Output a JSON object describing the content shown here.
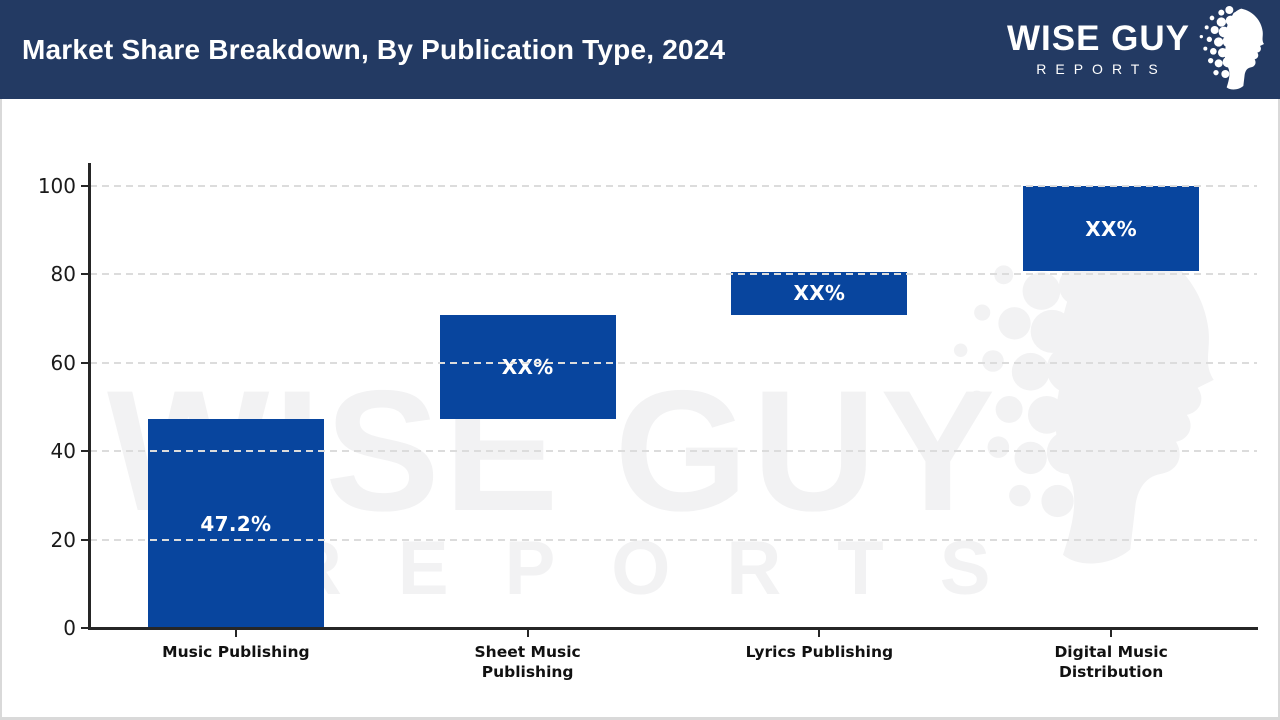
{
  "header": {
    "bg_color": "#233A63",
    "logo": {
      "line1": "WISE GUY",
      "line2": "REPORTS"
    }
  },
  "chart_data": {
    "type": "bar",
    "variant": "waterfall",
    "title": "Market Share Breakdown, By Publication Type, 2024",
    "categories": [
      "Music Publishing",
      "Sheet Music Publishing",
      "Lyrics Publishing",
      "Digital Music Distribution"
    ],
    "bars": [
      {
        "category": "Music Publishing",
        "label": "47.2%",
        "start": 0,
        "end": 47.2
      },
      {
        "category": "Sheet Music Publishing",
        "label": "XX%",
        "start": 47.2,
        "end": 70.9
      },
      {
        "category": "Lyrics Publishing",
        "label": "XX%",
        "start": 70.9,
        "end": 80.5
      },
      {
        "category": "Digital Music Distribution",
        "label": "XX%",
        "start": 80.7,
        "end": 100
      }
    ],
    "xlabel": "",
    "ylabel": "",
    "ylim": [
      0,
      100
    ],
    "yticks": [
      0,
      20,
      40,
      60,
      80,
      100
    ],
    "grid": {
      "horizontal": true,
      "style": "dashed",
      "color": "#dcdcdc",
      "drawn_above_bars": true
    },
    "legend": "none",
    "bar_color": "#08459E",
    "bar_label_color": "#ffffff",
    "axis_color": "#262626",
    "tick_label_color": "#1a1a1a",
    "watermark": {
      "line1": "WISE GUY",
      "line2": "REPORTS",
      "color": "#f2f2f3"
    }
  }
}
